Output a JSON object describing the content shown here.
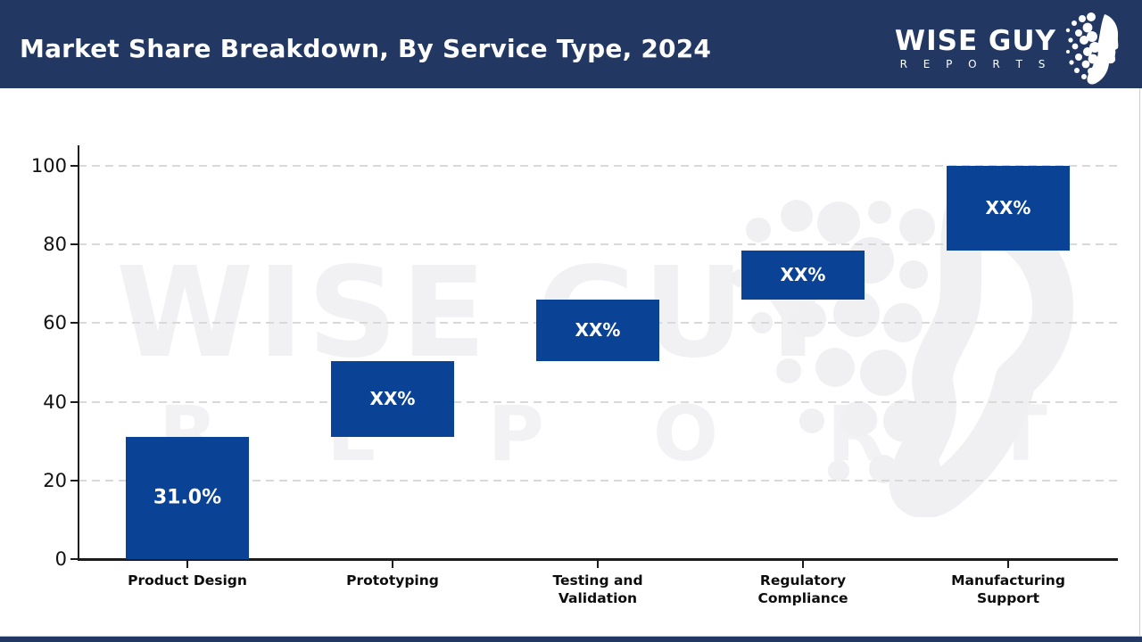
{
  "header": {
    "title": "Market Share Breakdown, By Service Type, 2024",
    "logo": {
      "wordmark": "WISE GUY",
      "subtext": "R E P O R T S"
    }
  },
  "watermark": {
    "line1": "WISE GUY",
    "line2": "R E P O R T S"
  },
  "chart_data": {
    "type": "bar",
    "subtype": "waterfall",
    "title": "Market Share Breakdown, By Service Type, 2024",
    "categories": [
      "Product Design",
      "Prototyping",
      "Testing and Validation",
      "Regulatory Compliance",
      "Manufacturing Support"
    ],
    "category_label_lines": [
      [
        "Product Design"
      ],
      [
        "Prototyping"
      ],
      [
        "Testing and",
        "Validation"
      ],
      [
        "Regulatory",
        "Compliance"
      ],
      [
        "Manufacturing",
        "Support"
      ]
    ],
    "bars": [
      {
        "category": "Product Design",
        "start": 0,
        "end": 31.0,
        "label": "31.0%"
      },
      {
        "category": "Prototyping",
        "start": 31.0,
        "end": 50.3,
        "label": "XX%"
      },
      {
        "category": "Testing and Validation",
        "start": 50.3,
        "end": 66.0,
        "label": "XX%"
      },
      {
        "category": "Regulatory Compliance",
        "start": 66.0,
        "end": 78.4,
        "label": "XX%"
      },
      {
        "category": "Manufacturing Support",
        "start": 78.4,
        "end": 100.0,
        "label": "XX%"
      }
    ],
    "y_ticks": [
      0,
      20,
      40,
      60,
      80,
      100
    ],
    "ylim": [
      0,
      105
    ],
    "xlabel": "",
    "ylabel": "",
    "grid": "horizontal-dashed",
    "legend": "none",
    "bar_color": "#0a4296",
    "bar_label_color": "#ffffff"
  },
  "colors": {
    "header_bg": "#223862",
    "footer_bg": "#223862",
    "bar": "#0a4296",
    "gridline": "#d9d9d9",
    "axis": "#1c1c1c",
    "watermark": "#f1f1f4"
  }
}
